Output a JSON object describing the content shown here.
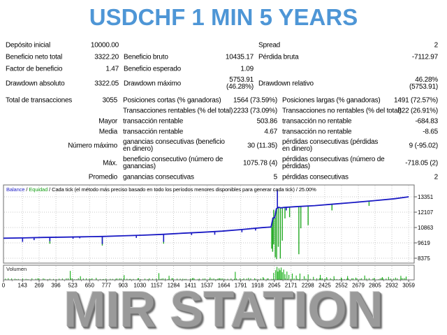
{
  "title": "USDCHF 1 MIN 5 YEARS",
  "watermark": "MIR STATION",
  "colors": {
    "title": "#4E96D6",
    "watermark": "#9a9a9a",
    "balance_line": "#1A1AC4",
    "equity_line": "#22A822",
    "volume_bar": "#00A800",
    "grid": "#C8C8C8",
    "panel_border": "#6E6E6E"
  },
  "stats": {
    "summary_rows": [
      {
        "cells": [
          "Depósito inicial",
          "10000.00",
          "",
          "",
          "Spread",
          "2"
        ]
      },
      {
        "cells": [
          "Beneficio neto total",
          "3322.20",
          "Beneficio bruto",
          "10435.17",
          "Pérdida bruta",
          "-7112.97"
        ]
      },
      {
        "cells": [
          "Factor de beneficio",
          "1.47",
          "Beneficio esperado",
          "1.09",
          "",
          ""
        ]
      },
      {
        "cells": [
          "Drawdown absoluto",
          "3322.05",
          "Drawdown máximo",
          "5753.91\n(46.28%)",
          "Drawdown relativo",
          "46.28%\n(5753.91)"
        ],
        "pre": true
      }
    ],
    "trade_rows": [
      {
        "cells": [
          "Total de transacciones",
          "3055",
          "Posiciones cortas (% ganadoras)",
          "1564 (73.59%)",
          "Posiciones largas (% ganadoras)",
          "1491 (72.57%)"
        ]
      },
      {
        "cells": [
          "",
          "",
          "Transacciones rentables (% del total)",
          "2233 (73.09%)",
          "Transacciones no rentables (% del total)",
          "822 (26.91%)"
        ]
      },
      {
        "cells": [
          "",
          "Mayor",
          "transacción rentable",
          "503.86",
          "transacción no rentable",
          "-684.83"
        ]
      },
      {
        "cells": [
          "",
          "Media",
          "transacción rentable",
          "4.67",
          "transacción no rentable",
          "-8.65"
        ]
      },
      {
        "cells": [
          "",
          "Número máximo",
          "ganancias consecutivas (beneficio en dinero)",
          "30 (11.35)",
          "pérdidas consecutivas (pérdidas en dinero)",
          "9 (-95.02)"
        ],
        "wrap": true
      },
      {
        "cells": [
          "",
          "Máx.",
          "beneficio consecutivo (número de ganancias)",
          "1075.78 (4)",
          "pérdidas consecutivas (número de pérdidas)",
          "-718.05 (2)"
        ],
        "wrap": true
      },
      {
        "cells": [
          "",
          "Promedio",
          "ganancias consecutivas",
          "5",
          "pérdidas consecutivas",
          "2"
        ]
      }
    ]
  },
  "chart_data": {
    "type": "line",
    "legend": {
      "balance": "Balance",
      "equity": "Equidad",
      "model": "Cada tick (el método más preciso basado en todo los períodos menores disponibles para generar cada tick)",
      "quality": "25.00%"
    },
    "volume_label": "Volumen",
    "y_ticks": [
      13351,
      12107,
      10863,
      9619,
      8375
    ],
    "x_ticks": [
      0,
      143,
      269,
      396,
      523,
      650,
      777,
      903,
      1030,
      1157,
      1284,
      1411,
      1537,
      1664,
      1791,
      1918,
      2045,
      2171,
      2298,
      2425,
      2552,
      2679,
      2805,
      2932,
      3059
    ],
    "x_max": 3090,
    "ylim": [
      8300,
      13450
    ],
    "grid": true,
    "balance_series": [
      [
        0,
        10000
      ],
      [
        150,
        10020
      ],
      [
        300,
        10060
      ],
      [
        450,
        10080
      ],
      [
        600,
        10110
      ],
      [
        750,
        10140
      ],
      [
        900,
        10190
      ],
      [
        1050,
        10240
      ],
      [
        1200,
        10310
      ],
      [
        1350,
        10400
      ],
      [
        1500,
        10480
      ],
      [
        1650,
        10570
      ],
      [
        1800,
        10700
      ],
      [
        1950,
        10850
      ],
      [
        2020,
        10900
      ],
      [
        2035,
        11640
      ],
      [
        2048,
        11660
      ],
      [
        2060,
        12380
      ],
      [
        2075,
        12500
      ],
      [
        2095,
        12460
      ],
      [
        2120,
        12490
      ],
      [
        2200,
        12550
      ],
      [
        2350,
        12640
      ],
      [
        2500,
        12770
      ],
      [
        2650,
        12900
      ],
      [
        2800,
        13040
      ],
      [
        2950,
        13190
      ],
      [
        3059,
        13351
      ]
    ],
    "balance_spikes": [
      [
        144,
        10020,
        9700
      ],
      [
        231,
        10040,
        9840
      ],
      [
        350,
        10065,
        9760
      ],
      [
        525,
        10095,
        9950
      ],
      [
        576,
        10105,
        9990
      ],
      [
        746,
        10140,
        9530
      ],
      [
        1003,
        10225,
        10020
      ],
      [
        1209,
        10315,
        9700
      ],
      [
        1420,
        10435,
        10250
      ],
      [
        1595,
        10545,
        10280
      ],
      [
        1800,
        10700,
        10480
      ],
      [
        1903,
        10780,
        10620
      ],
      [
        2135,
        12490,
        12250
      ],
      [
        2068,
        12400,
        13900
      ]
    ],
    "equity_spikes": [
      [
        350,
        10065,
        9550
      ],
      [
        746,
        10140,
        9400
      ],
      [
        1209,
        10315,
        9550
      ],
      [
        2025,
        10900,
        9150
      ],
      [
        2032,
        11640,
        8900
      ],
      [
        2040,
        12300,
        9500
      ],
      [
        2052,
        11660,
        8450
      ],
      [
        2062,
        12380,
        8300
      ],
      [
        2075,
        12500,
        9300
      ],
      [
        2090,
        12460,
        8350
      ],
      [
        2105,
        12470,
        9800
      ],
      [
        2125,
        12490,
        11600
      ],
      [
        2160,
        12510,
        11700
      ],
      [
        2230,
        12560,
        8700
      ],
      [
        2245,
        12560,
        10800
      ],
      [
        2300,
        12590,
        11050
      ],
      [
        2480,
        12740,
        12250
      ],
      [
        2760,
        12950,
        12620
      ]
    ],
    "volume_bars_pct": [
      [
        504,
        65
      ],
      [
        581,
        25
      ],
      [
        700,
        12
      ],
      [
        911,
        33
      ],
      [
        1020,
        10
      ],
      [
        1173,
        48
      ],
      [
        1250,
        28
      ],
      [
        1430,
        12
      ],
      [
        1560,
        15
      ],
      [
        1750,
        58
      ],
      [
        1850,
        12
      ],
      [
        1960,
        18
      ],
      [
        2040,
        50
      ],
      [
        2055,
        70
      ],
      [
        2065,
        95
      ],
      [
        2072,
        60
      ],
      [
        2080,
        85
      ],
      [
        2088,
        70
      ],
      [
        2096,
        90
      ],
      [
        2105,
        55
      ],
      [
        2115,
        75
      ],
      [
        2125,
        40
      ],
      [
        2140,
        60
      ],
      [
        2155,
        35
      ],
      [
        2180,
        45
      ],
      [
        2210,
        30
      ],
      [
        2238,
        45
      ],
      [
        2270,
        25
      ],
      [
        2300,
        38
      ],
      [
        2340,
        20
      ],
      [
        2392,
        35
      ],
      [
        2440,
        18
      ],
      [
        2495,
        25
      ],
      [
        2550,
        15
      ],
      [
        2598,
        26
      ],
      [
        2660,
        14
      ],
      [
        2727,
        30
      ],
      [
        2800,
        12
      ],
      [
        2860,
        18
      ],
      [
        2907,
        20
      ],
      [
        2960,
        14
      ],
      [
        3000,
        28
      ],
      [
        3040,
        22
      ]
    ]
  }
}
